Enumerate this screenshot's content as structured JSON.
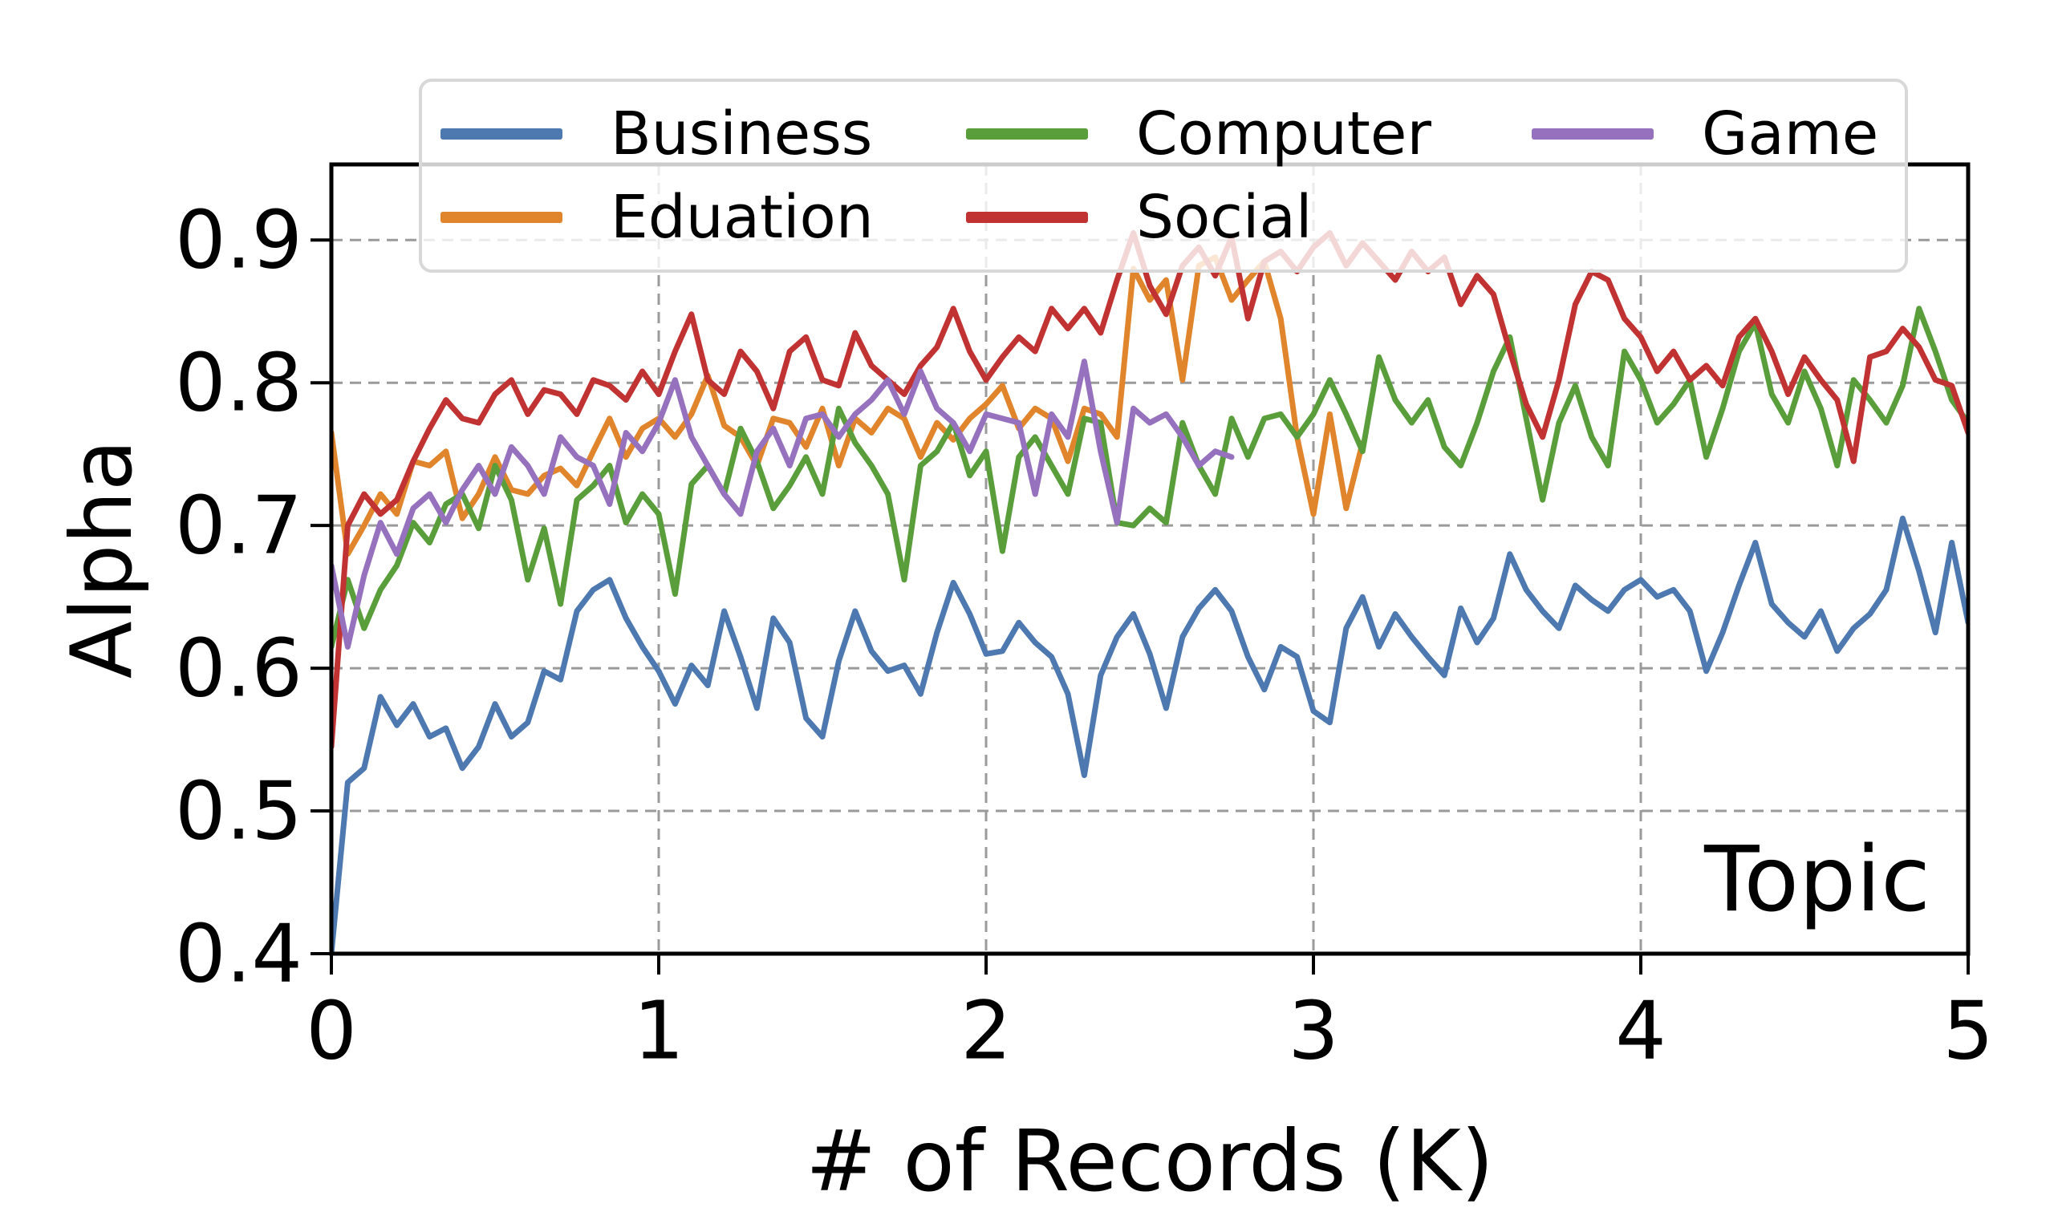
{
  "chart_data": {
    "type": "line",
    "title": "",
    "xlabel": "# of Records (K)",
    "ylabel": "Alpha",
    "annotation": "Topic",
    "xlim": [
      0,
      5
    ],
    "ylim": [
      0.4,
      0.953
    ],
    "xticks": {
      "values": [
        0,
        1,
        2,
        3,
        4,
        5
      ],
      "labels": [
        "0",
        "1",
        "2",
        "3",
        "4",
        "5"
      ]
    },
    "yticks": {
      "values": [
        0.4,
        0.5,
        0.6,
        0.7,
        0.8,
        0.9
      ],
      "labels": [
        "0.4",
        "0.5",
        "0.6",
        "0.7",
        "0.8",
        "0.9"
      ]
    },
    "grid": true,
    "grid_color": "#9a9a9a",
    "spine_color": "#000000",
    "legend_position": "upper-center-overlapping-top",
    "legend_columns": 3,
    "series": [
      {
        "name": "Business",
        "color": "#4d79b0",
        "x_start": 0,
        "x_step": 0.05,
        "values": [
          0.4,
          0.52,
          0.53,
          0.58,
          0.56,
          0.575,
          0.552,
          0.558,
          0.53,
          0.545,
          0.575,
          0.552,
          0.562,
          0.598,
          0.592,
          0.64,
          0.655,
          0.662,
          0.635,
          0.615,
          0.598,
          0.575,
          0.602,
          0.588,
          0.64,
          0.608,
          0.572,
          0.635,
          0.618,
          0.565,
          0.552,
          0.605,
          0.64,
          0.612,
          0.598,
          0.602,
          0.582,
          0.625,
          0.66,
          0.638,
          0.61,
          0.612,
          0.632,
          0.618,
          0.608,
          0.582,
          0.525,
          0.595,
          0.622,
          0.638,
          0.61,
          0.572,
          0.622,
          0.642,
          0.655,
          0.64,
          0.608,
          0.585,
          0.615,
          0.608,
          0.57,
          0.562,
          0.628,
          0.65,
          0.615,
          0.638,
          0.622,
          0.608,
          0.595,
          0.642,
          0.618,
          0.635,
          0.68,
          0.655,
          0.64,
          0.628,
          0.658,
          0.648,
          0.64,
          0.655,
          0.662,
          0.65,
          0.655,
          0.64,
          0.598,
          0.625,
          0.658,
          0.688,
          0.645,
          0.632,
          0.622,
          0.64,
          0.612,
          0.628,
          0.638,
          0.655,
          0.705,
          0.668,
          0.625,
          0.688,
          0.632
        ]
      },
      {
        "name": "Eduation",
        "color": "#e0852c",
        "x_start": 0,
        "x_step": 0.05,
        "values": [
          0.765,
          0.68,
          0.7,
          0.722,
          0.708,
          0.745,
          0.742,
          0.752,
          0.705,
          0.722,
          0.748,
          0.725,
          0.722,
          0.735,
          0.74,
          0.728,
          0.752,
          0.775,
          0.748,
          0.768,
          0.775,
          0.762,
          0.778,
          0.805,
          0.77,
          0.762,
          0.742,
          0.775,
          0.772,
          0.755,
          0.782,
          0.742,
          0.775,
          0.765,
          0.782,
          0.775,
          0.748,
          0.772,
          0.76,
          0.775,
          0.785,
          0.798,
          0.768,
          0.782,
          0.775,
          0.745,
          0.782,
          0.778,
          0.762,
          0.88,
          0.858,
          0.872,
          0.802,
          0.882,
          0.888,
          0.858,
          0.872,
          0.885,
          0.845,
          0.762,
          0.708,
          0.778,
          0.712,
          0.758
        ]
      },
      {
        "name": "Computer",
        "color": "#5a9e3c",
        "x_start": 0,
        "x_step": 0.05,
        "values": [
          0.615,
          0.662,
          0.628,
          0.655,
          0.672,
          0.702,
          0.688,
          0.715,
          0.722,
          0.698,
          0.742,
          0.718,
          0.662,
          0.698,
          0.645,
          0.718,
          0.728,
          0.742,
          0.702,
          0.722,
          0.708,
          0.652,
          0.729,
          0.742,
          0.722,
          0.768,
          0.745,
          0.712,
          0.728,
          0.748,
          0.722,
          0.782,
          0.758,
          0.742,
          0.722,
          0.662,
          0.742,
          0.752,
          0.772,
          0.735,
          0.752,
          0.682,
          0.748,
          0.762,
          0.742,
          0.722,
          0.775,
          0.772,
          0.702,
          0.7,
          0.712,
          0.702,
          0.772,
          0.742,
          0.722,
          0.775,
          0.748,
          0.775,
          0.778,
          0.762,
          0.778,
          0.802,
          0.778,
          0.752,
          0.818,
          0.788,
          0.772,
          0.788,
          0.755,
          0.742,
          0.772,
          0.808,
          0.832,
          0.775,
          0.718,
          0.772,
          0.798,
          0.762,
          0.742,
          0.822,
          0.802,
          0.772,
          0.785,
          0.802,
          0.748,
          0.782,
          0.822,
          0.842,
          0.792,
          0.772,
          0.808,
          0.782,
          0.742,
          0.802,
          0.788,
          0.772,
          0.798,
          0.852,
          0.822,
          0.788,
          0.772
        ]
      },
      {
        "name": "Social",
        "color": "#c13232",
        "x_start": 0,
        "x_step": 0.05,
        "values": [
          0.545,
          0.7,
          0.722,
          0.708,
          0.718,
          0.745,
          0.768,
          0.788,
          0.775,
          0.772,
          0.792,
          0.802,
          0.778,
          0.795,
          0.792,
          0.778,
          0.802,
          0.798,
          0.788,
          0.808,
          0.792,
          0.822,
          0.848,
          0.802,
          0.792,
          0.822,
          0.808,
          0.782,
          0.822,
          0.832,
          0.802,
          0.798,
          0.835,
          0.812,
          0.802,
          0.792,
          0.812,
          0.825,
          0.852,
          0.822,
          0.802,
          0.818,
          0.832,
          0.822,
          0.852,
          0.838,
          0.852,
          0.835,
          0.872,
          0.905,
          0.868,
          0.848,
          0.882,
          0.895,
          0.875,
          0.902,
          0.845,
          0.885,
          0.892,
          0.878,
          0.895,
          0.905,
          0.882,
          0.898,
          0.885,
          0.872,
          0.892,
          0.878,
          0.888,
          0.855,
          0.875,
          0.862,
          0.822,
          0.785,
          0.762,
          0.802,
          0.855,
          0.878,
          0.872,
          0.845,
          0.832,
          0.808,
          0.822,
          0.802,
          0.812,
          0.798,
          0.832,
          0.845,
          0.822,
          0.792,
          0.818,
          0.802,
          0.788,
          0.745,
          0.818,
          0.822,
          0.838,
          0.825,
          0.802,
          0.798,
          0.765
        ]
      },
      {
        "name": "Game",
        "color": "#9671bd",
        "x_start": 0,
        "x_step": 0.05,
        "values": [
          0.672,
          0.615,
          0.665,
          0.702,
          0.68,
          0.712,
          0.722,
          0.702,
          0.725,
          0.742,
          0.722,
          0.755,
          0.742,
          0.722,
          0.762,
          0.748,
          0.742,
          0.715,
          0.765,
          0.752,
          0.772,
          0.802,
          0.762,
          0.742,
          0.722,
          0.708,
          0.752,
          0.768,
          0.742,
          0.775,
          0.778,
          0.762,
          0.778,
          0.788,
          0.802,
          0.778,
          0.808,
          0.782,
          0.772,
          0.752,
          0.778,
          0.775,
          0.772,
          0.722,
          0.778,
          0.762,
          0.815,
          0.752,
          0.702,
          0.782,
          0.772,
          0.778,
          0.762,
          0.742,
          0.752,
          0.748
        ]
      }
    ],
    "legend_grid": [
      {
        "series_index": 0,
        "slot": "c1r1"
      },
      {
        "series_index": 2,
        "slot": "c2r1"
      },
      {
        "series_index": 4,
        "slot": "c3r1"
      },
      {
        "series_index": 1,
        "slot": "c1r2"
      },
      {
        "series_index": 3,
        "slot": "c2r2"
      }
    ]
  }
}
